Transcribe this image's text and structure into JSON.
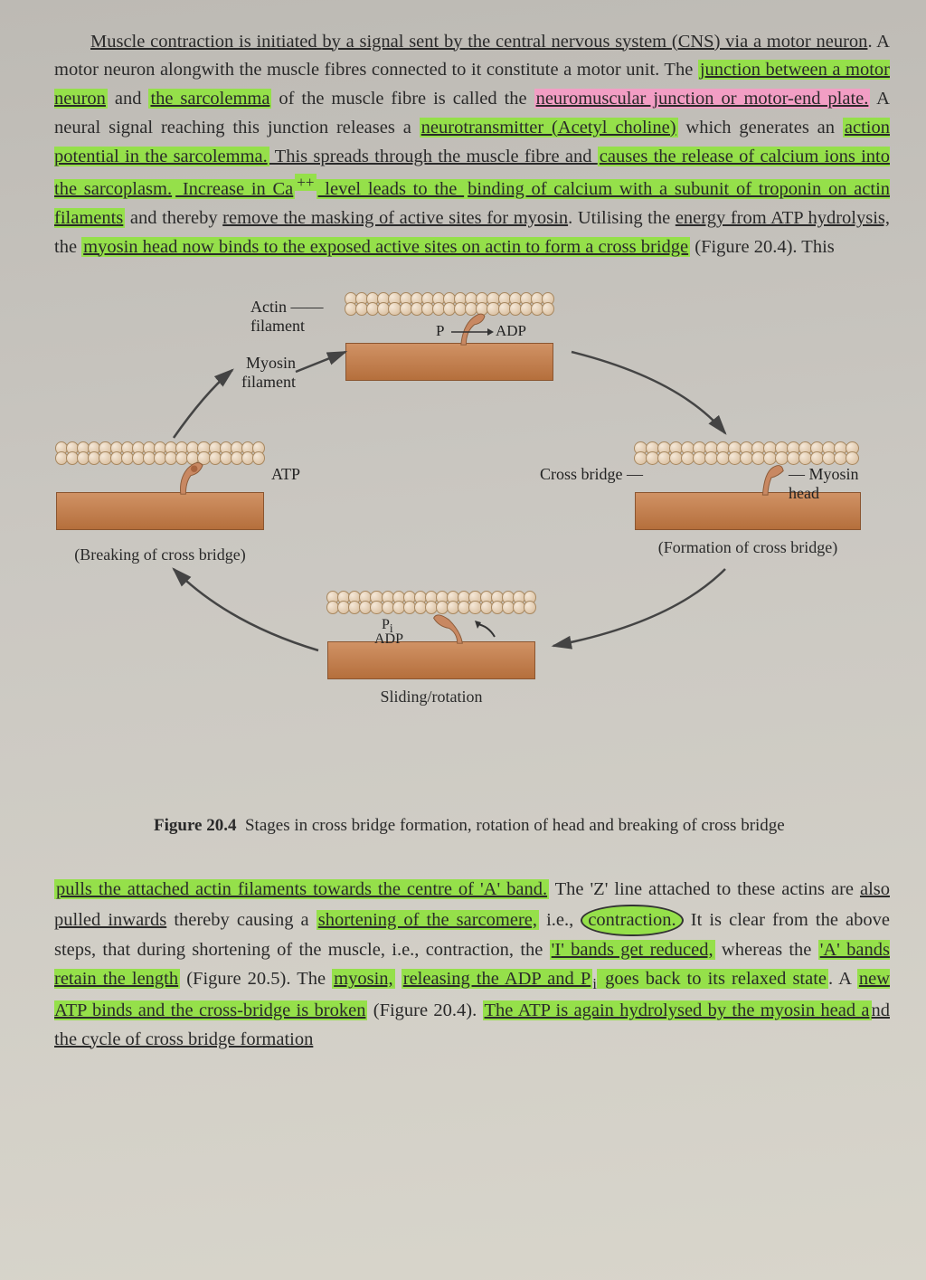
{
  "para1": {
    "t1": "Muscle contraction is initiated by a signal sent by the central nervous system (CNS) via a motor neuron",
    "t2": ". A motor neuron alongwith the muscle fibres connected to it constitute a motor unit. The ",
    "t3": "junction between a motor neuron",
    "t4": " and ",
    "t5": "the sarcolemma",
    "t6": " of the muscle fibre is called the ",
    "t7": "neuromuscular junction or motor-end plate.",
    "t8": " A neural signal reaching this junction releases a ",
    "t9": "neurotransmitter (Acetyl choline)",
    "t10": " which generates an ",
    "t11": "action potential in the sarcolemma.",
    "t12": " This spreads through the muscle fibre and ",
    "t13": "causes the release of calcium ions into the sarcoplasm.",
    "t14": " Increase in Ca",
    "t15": "++",
    "t16": " level leads to the ",
    "t17": "binding of calcium with a subunit of troponin on actin filaments",
    "t18": " and thereby ",
    "t19": "remove the masking of active sites for myosin",
    "t20": ". Utilising the ",
    "t21": "energy from ATP hydrolysis,",
    "t22": " the ",
    "t23": "myosin head now binds to the exposed active sites on actin to form a cross bridge",
    "t24": " (Figure 20.4). This"
  },
  "diagram": {
    "actin_label": "Actin",
    "filament_label": "filament",
    "myosin_label": "Myosin",
    "p_label": "P",
    "adp_label": "ADP",
    "atp_label": "ATP",
    "cross_bridge_label": "Cross bridge",
    "myosin_head_label": "Myosin head",
    "formation_caption": "(Formation of cross bridge)",
    "breaking_caption": "(Breaking of cross bridge)",
    "sliding_caption": "Sliding/rotation",
    "colors": {
      "actin_bead_light": "#f5e8d8",
      "actin_bead_dark": "#d4b896",
      "myosin_bar_light": "#d09265",
      "myosin_bar_dark": "#b56f3c",
      "myosin_head": "#c88862"
    }
  },
  "figcap": {
    "label": "Figure 20.4",
    "text": "Stages in cross bridge formation, rotation of head and breaking of cross bridge"
  },
  "para2": {
    "t1": "pulls the attached actin filaments towards the centre of 'A' band.",
    "t2": " The 'Z' line attached to these actins are ",
    "t3": "also pulled inwards",
    "t4": " thereby causing a ",
    "t5": "shortening of the sarcomere,",
    "t6": " i.e., ",
    "t7": "contraction.",
    "t8": " It is clear from the above steps, that during shortening of the muscle, i.e., contraction, the ",
    "t9": "'I' bands get reduced,",
    "t10": " whereas the ",
    "t11": "'A' bands retain the length",
    "t12": " (Figure 20.5). The ",
    "t13": "myosin,",
    "t14": " ",
    "t15": "releasing the ADP and P",
    "t16": "i",
    "t17": " goes back to its relaxed state",
    "t18": ". A ",
    "t19": "new ATP binds and the cross-bridge is broken",
    "t20": " (Figure 20.4). ",
    "t21": "The ATP is again hydrolysed by the myosin head a",
    "t22": "nd the cycle of cross bridge formation"
  }
}
